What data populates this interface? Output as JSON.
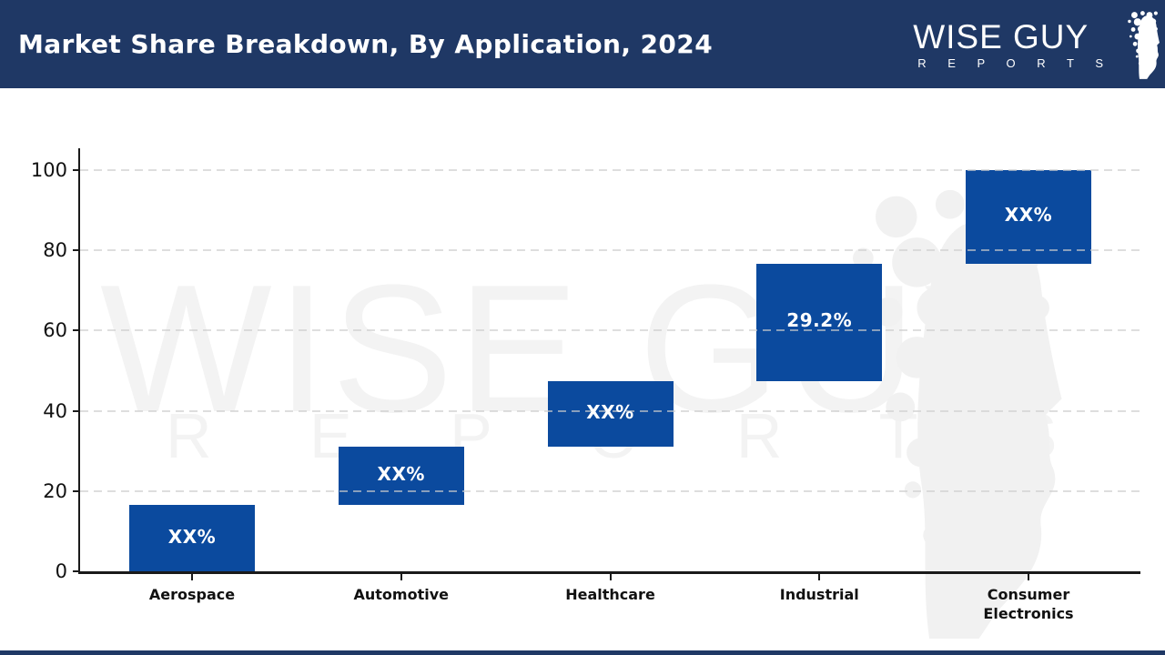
{
  "header": {
    "title": "Market Share Breakdown, By Application, 2024",
    "logo": {
      "wordmark": "WISE GUY",
      "subtext": "R E P O R T S"
    }
  },
  "watermark": {
    "wordmark": "WISE GUY",
    "subtext": "R E P O R T S"
  },
  "colors": {
    "header_bg": "#1f3865",
    "bar": "#0b4a9e",
    "bar_label": "#ffffff",
    "axis": "#1a1a1a",
    "gridline": "#dcdcdc",
    "watermark": "#f2f2f2"
  },
  "chart_data": {
    "type": "bar",
    "subtype": "waterfall",
    "title": "Market Share Breakdown, By Application, 2024",
    "xlabel": "",
    "ylabel": "",
    "ylim": [
      0,
      105
    ],
    "yticks": [
      0,
      20,
      40,
      60,
      80,
      100
    ],
    "grid": "horizontal-dashed",
    "legend": "none",
    "categories": [
      "Aerospace",
      "Automotive",
      "Healthcare",
      "Industrial",
      "Consumer Electronics"
    ],
    "segments": [
      {
        "category": "Aerospace",
        "start": 0,
        "end": 16.5,
        "value_label": "XX%"
      },
      {
        "category": "Automotive",
        "start": 16.5,
        "end": 31.0,
        "value_label": "XX%"
      },
      {
        "category": "Healthcare",
        "start": 31.0,
        "end": 47.5,
        "value_label": "XX%"
      },
      {
        "category": "Industrial",
        "start": 47.5,
        "end": 76.7,
        "value_label": "29.2%"
      },
      {
        "category": "Consumer Electronics",
        "start": 76.7,
        "end": 100,
        "value_label": "XX%"
      }
    ]
  }
}
